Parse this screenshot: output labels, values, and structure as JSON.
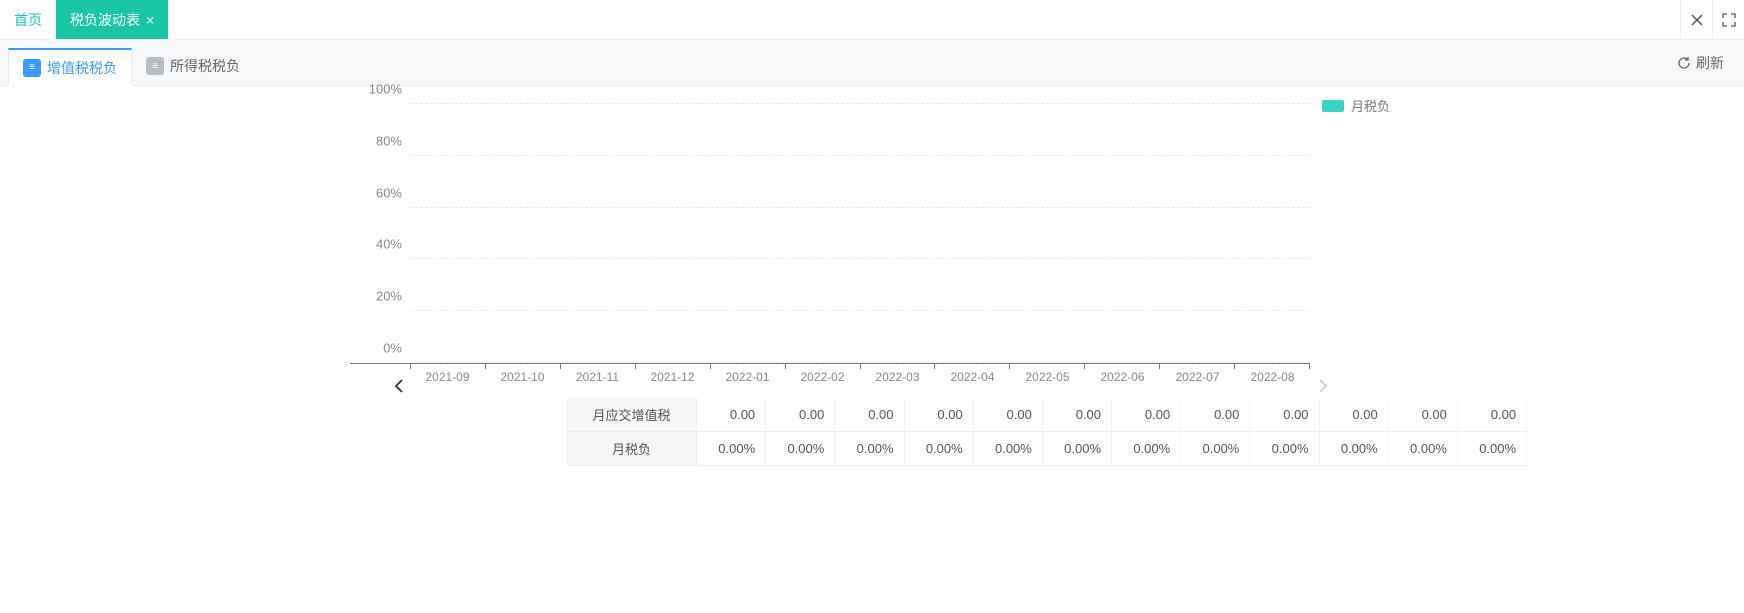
{
  "tabs": {
    "home": "首页",
    "active": "税负波动表"
  },
  "subtabs": {
    "vat": "增值税税负",
    "income": "所得税税负"
  },
  "actions": {
    "refresh": "刷新"
  },
  "chart": {
    "type": "bar",
    "legend_label": "月税负",
    "legend_color": "#3ad2c0",
    "y_ticks": [
      "0%",
      "20%",
      "40%",
      "60%",
      "80%",
      "100%"
    ],
    "ylim": [
      0,
      100
    ],
    "months": [
      "2021-09",
      "2021-10",
      "2021-11",
      "2021-12",
      "2022-01",
      "2022-02",
      "2022-03",
      "2022-04",
      "2022-05",
      "2022-06",
      "2022-07",
      "2022-08"
    ],
    "grid_color": "#e6e8ea",
    "axis_color": "#777777",
    "background_color": "#ffffff"
  },
  "table": {
    "rows": [
      {
        "label": "月应交增值税",
        "values": [
          "0.00",
          "0.00",
          "0.00",
          "0.00",
          "0.00",
          "0.00",
          "0.00",
          "0.00",
          "0.00",
          "0.00",
          "0.00",
          "0.00"
        ]
      },
      {
        "label": "月税负",
        "values": [
          "0.00%",
          "0.00%",
          "0.00%",
          "0.00%",
          "0.00%",
          "0.00%",
          "0.00%",
          "0.00%",
          "0.00%",
          "0.00%",
          "0.00%",
          "0.00%"
        ]
      }
    ]
  }
}
